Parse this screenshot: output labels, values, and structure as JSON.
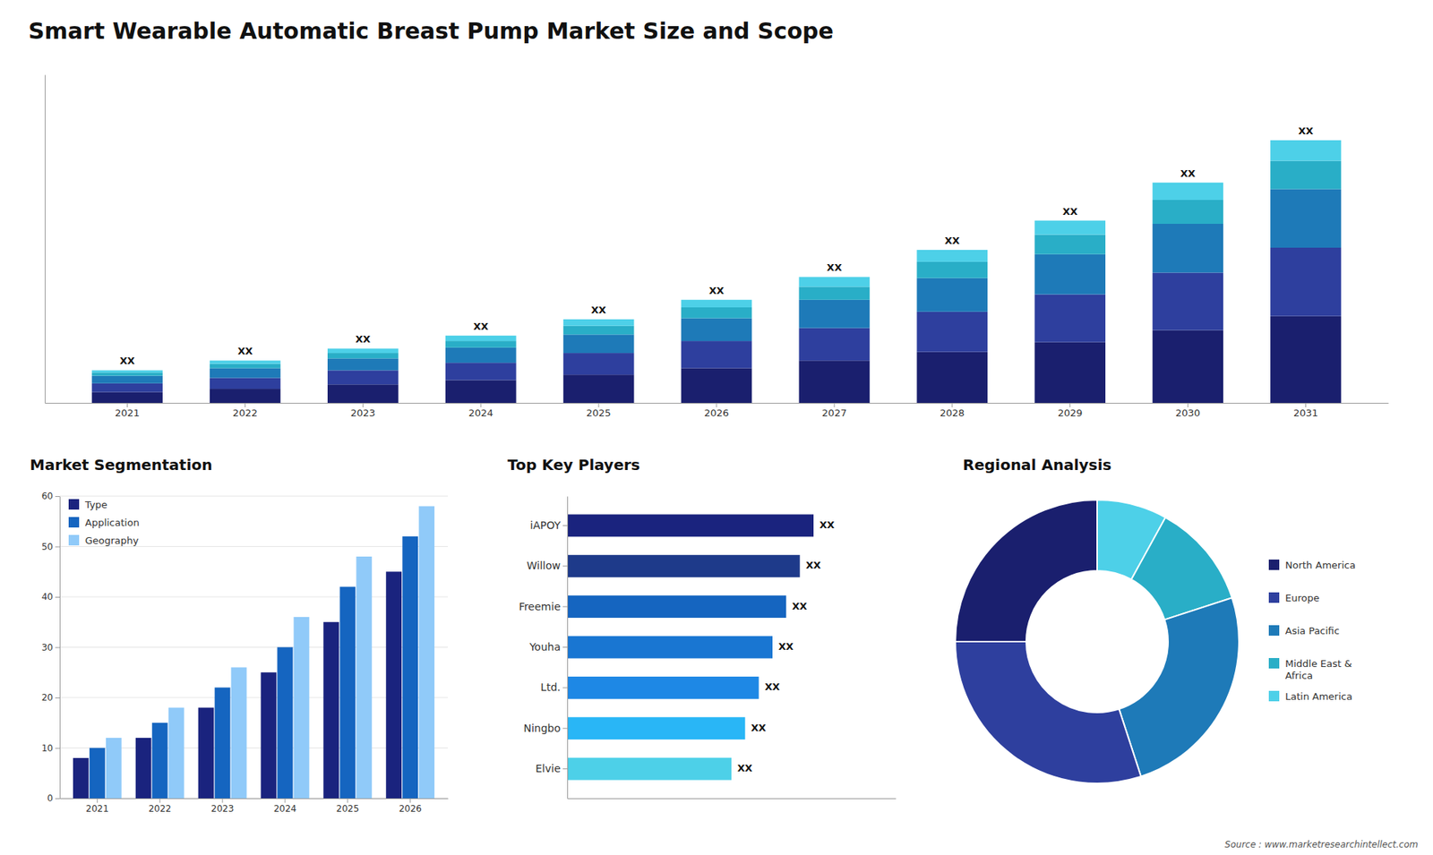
{
  "title": "Smart Wearable Automatic Breast Pump Market Size and Scope",
  "annotations": [
    "Source : www.marketresearchintellect.com"
  ],
  "chart_data": [
    {
      "type": "bar",
      "stacked": true,
      "categories": [
        "2021",
        "2022",
        "2023",
        "2024",
        "2025",
        "2026",
        "2027",
        "2028",
        "2029",
        "2030",
        "2031"
      ],
      "series": [
        {
          "color": "#1a1f6e",
          "values": [
            1,
            1.3,
            1.7,
            2.1,
            2.6,
            3.2,
            3.9,
            4.7,
            5.6,
            6.7,
            8.0
          ]
        },
        {
          "color": "#2e3f9e",
          "values": [
            0.8,
            1.0,
            1.3,
            1.6,
            2.0,
            2.5,
            3.0,
            3.7,
            4.4,
            5.3,
            6.3
          ]
        },
        {
          "color": "#1e7ab8",
          "values": [
            0.7,
            0.9,
            1.1,
            1.4,
            1.7,
            2.1,
            2.6,
            3.1,
            3.7,
            4.5,
            5.4
          ]
        },
        {
          "color": "#29aec7",
          "values": [
            0.3,
            0.4,
            0.5,
            0.6,
            0.8,
            1.0,
            1.2,
            1.5,
            1.8,
            2.2,
            2.6
          ]
        },
        {
          "color": "#4dd0e8",
          "values": [
            0.2,
            0.3,
            0.4,
            0.5,
            0.6,
            0.7,
            0.9,
            1.1,
            1.3,
            1.6,
            1.9
          ]
        }
      ],
      "ylim": [
        0,
        30.25
      ],
      "tick_labels": "x",
      "annotations": [
        "XX",
        "XX",
        "XX",
        "XX",
        "XX",
        "XX",
        "XX",
        "XX",
        "XX",
        "XX",
        "XX"
      ]
    },
    {
      "type": "bar",
      "title": "Market Segmentation",
      "categories": [
        "2021",
        "2022",
        "2023",
        "2024",
        "2025",
        "2026"
      ],
      "series": [
        {
          "name": "Type",
          "color": "#1a237e",
          "values": [
            8,
            12,
            18,
            25,
            35,
            45
          ]
        },
        {
          "name": "Application",
          "color": "#1565c0",
          "values": [
            10,
            15,
            22,
            30,
            42,
            52
          ]
        },
        {
          "name": "Geography",
          "color": "#90caf9",
          "values": [
            12,
            18,
            26,
            36,
            48,
            58
          ]
        }
      ],
      "ylim": [
        0,
        60
      ],
      "yticks": [
        0,
        10,
        20,
        30,
        40,
        50,
        60
      ],
      "grid": true,
      "legend": "upper left"
    },
    {
      "type": "bar",
      "orientation": "horizontal",
      "title": "Top Key Players",
      "categories": [
        "iAPOY",
        "Willow",
        "Freemie",
        "Youha",
        "Ltd.",
        "Ningbo",
        "Elvie"
      ],
      "values": [
        9,
        8.5,
        8,
        7.5,
        7,
        6.5,
        6
      ],
      "colors": [
        "#1a237e",
        "#1e3a8a",
        "#1565c0",
        "#1976d2",
        "#1e88e5",
        "#29b6f6",
        "#4dd0e8"
      ],
      "xlim": [
        0,
        12
      ],
      "tick_labels": "y",
      "annotations": [
        "XX",
        "XX",
        "XX",
        "XX",
        "XX",
        "XX",
        "XX"
      ]
    },
    {
      "type": "pie",
      "title": "Regional Analysis",
      "categories": [
        "Latin America",
        "Middle East &\nAfrica",
        "Asia Pacific",
        "Europe",
        "North America"
      ],
      "values": [
        0.08,
        0.12,
        0.25,
        0.3,
        0.25
      ],
      "colors": [
        "#4dd0e8",
        "#29aec7",
        "#1e7ab8",
        "#2e3f9e",
        "#1a1f6e"
      ],
      "legend": "right"
    }
  ]
}
